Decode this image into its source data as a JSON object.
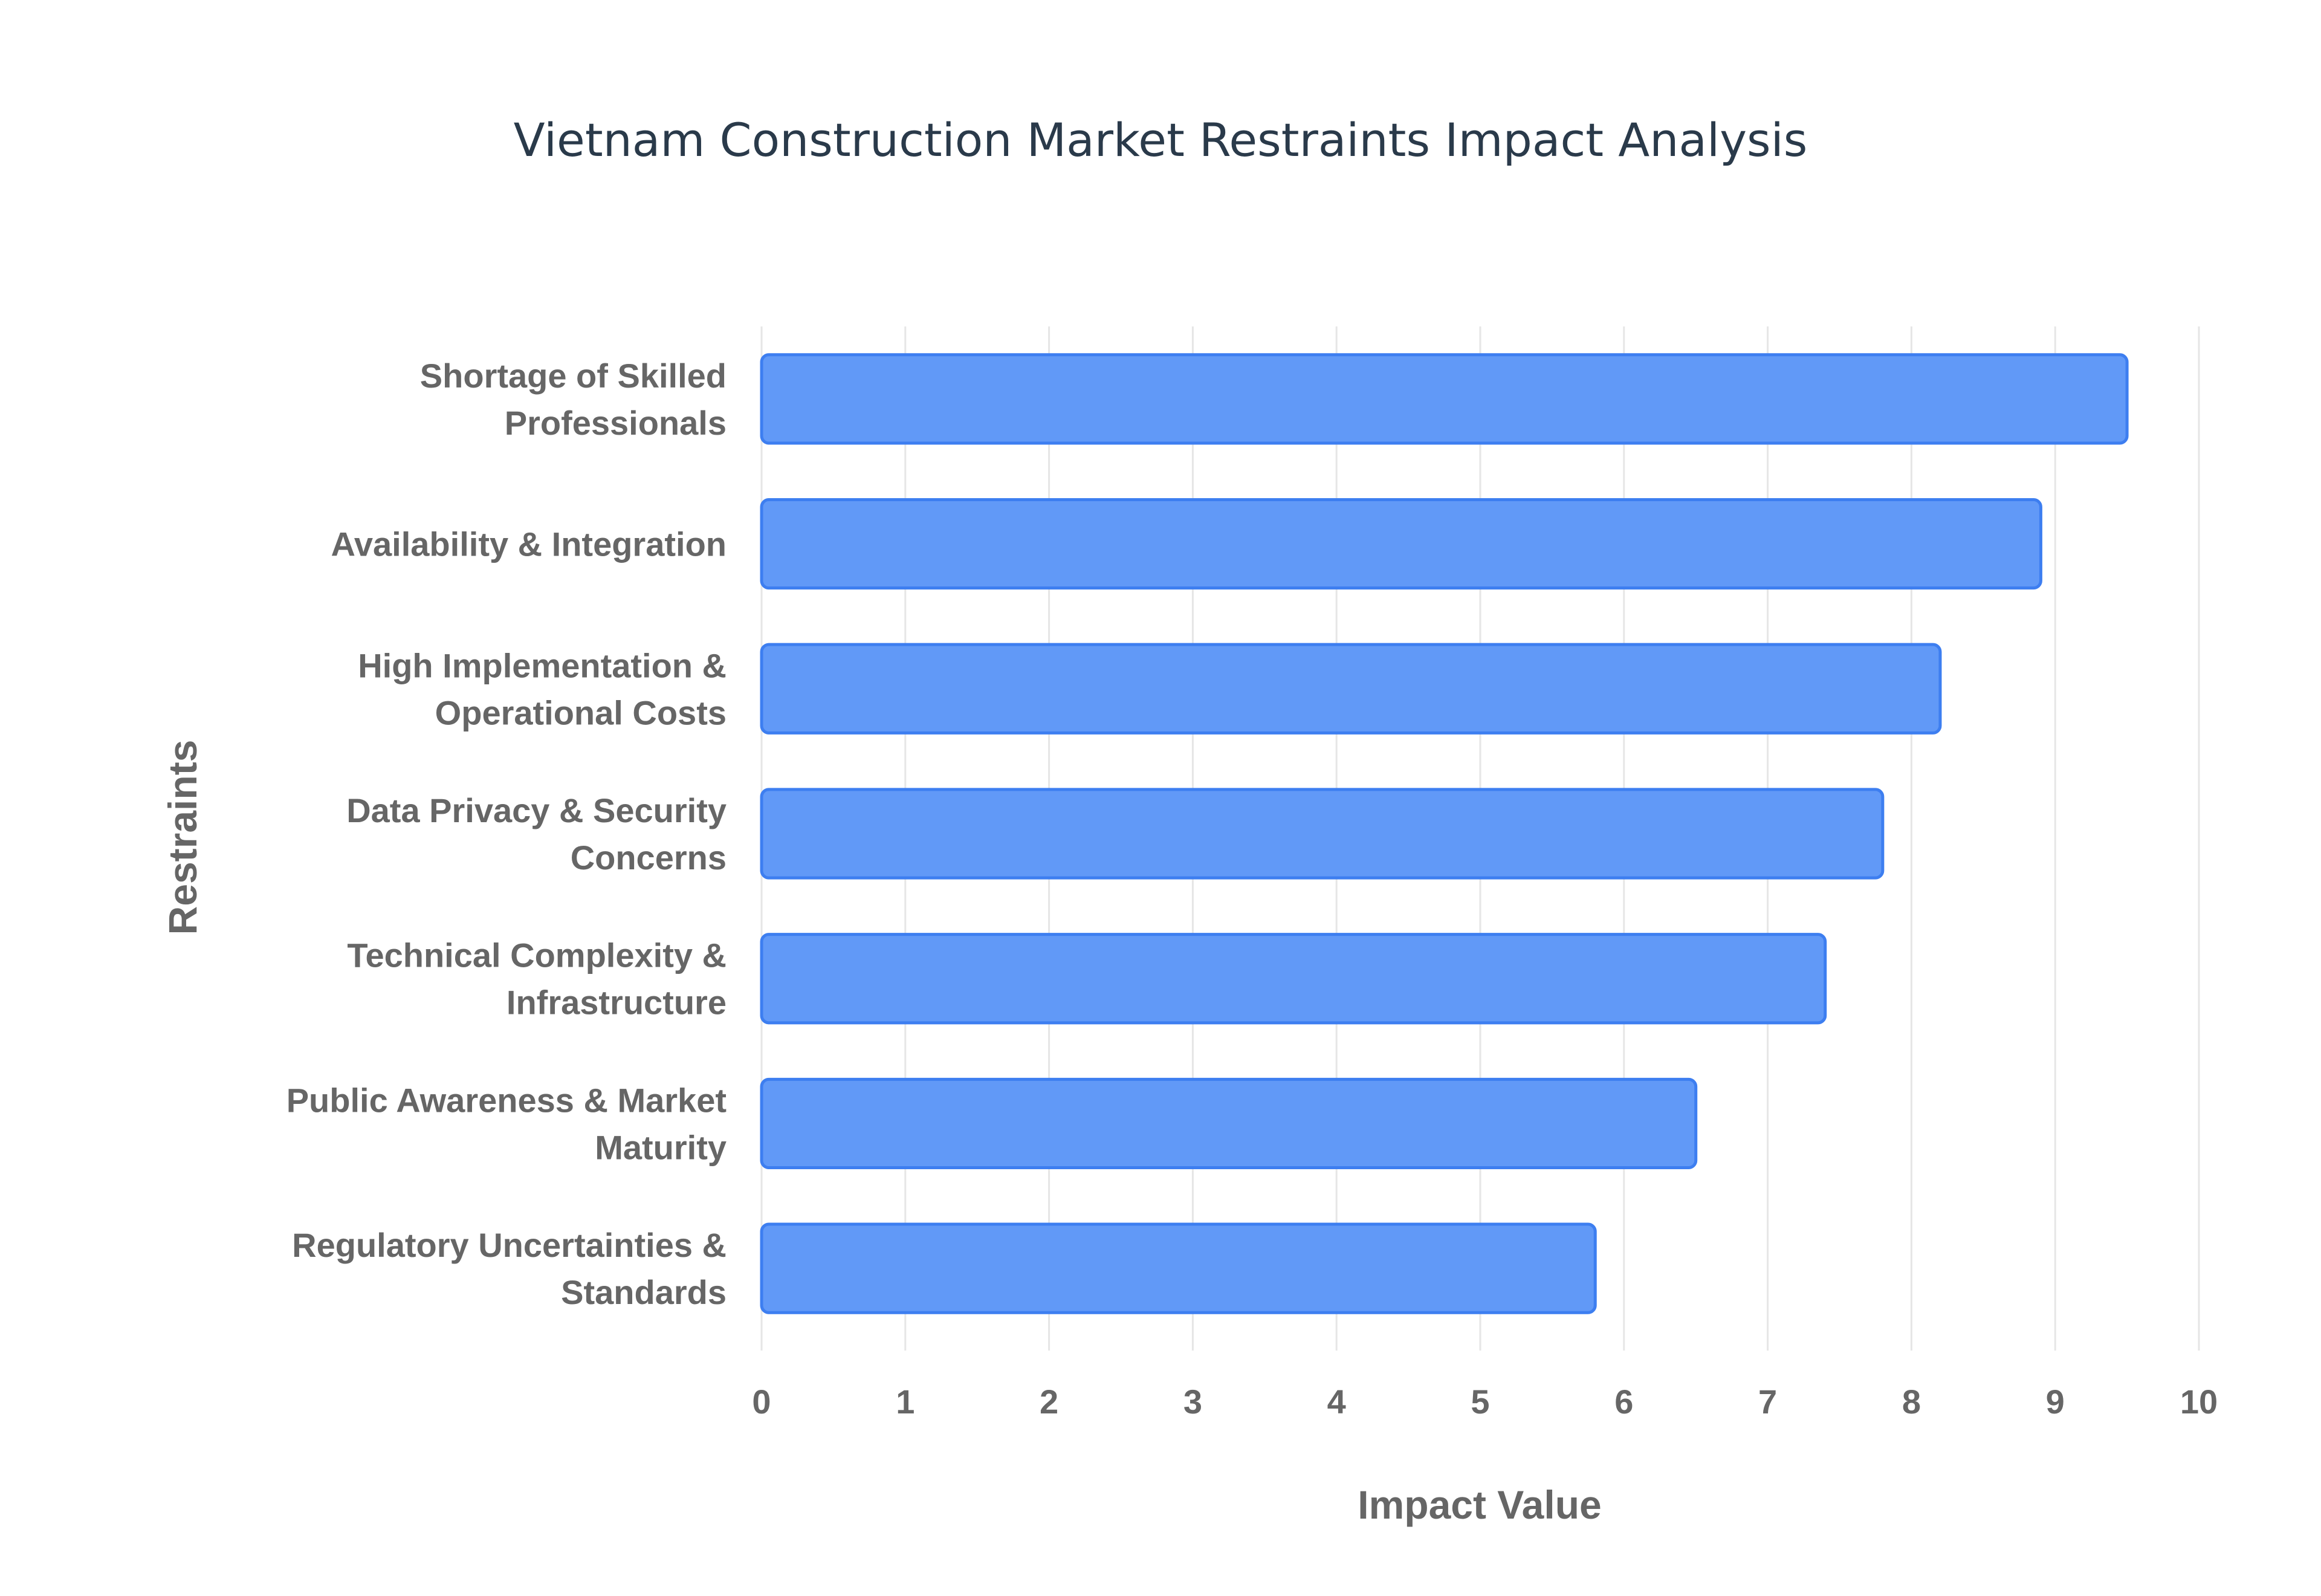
{
  "chart_data": {
    "type": "bar",
    "orientation": "horizontal",
    "title": "Vietnam Construction Market Restraints Impact Analysis",
    "xlabel": "Impact Value",
    "ylabel": "Restraints",
    "xlim": [
      0,
      10
    ],
    "x_ticks": [
      "0",
      "1",
      "2",
      "3",
      "4",
      "5",
      "6",
      "7",
      "8",
      "9",
      "10"
    ],
    "grid": true,
    "legend": "none",
    "bar_color": "#6199f7",
    "bar_border_color": "#3d7ef0",
    "categories": [
      [
        "Shortage of Skilled",
        "Professionals"
      ],
      [
        "Availability & Integration"
      ],
      [
        "High Implementation &",
        "Operational Costs"
      ],
      [
        "Data Privacy & Security",
        "Concerns"
      ],
      [
        "Technical Complexity &",
        "Infrastructure"
      ],
      [
        "Public Awareness & Market",
        "Maturity"
      ],
      [
        "Regulatory Uncertainties &",
        "Standards"
      ]
    ],
    "values": [
      9.5,
      8.9,
      8.2,
      7.8,
      7.4,
      6.5,
      5.8
    ]
  }
}
